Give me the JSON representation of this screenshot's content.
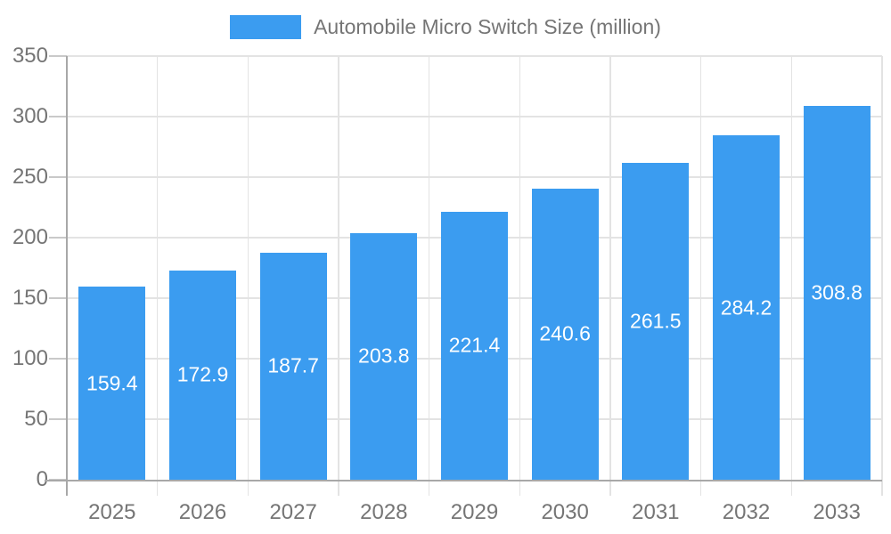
{
  "legend": {
    "series_label": "Automobile Micro Switch Size (million)"
  },
  "chart_data": {
    "type": "bar",
    "title": "",
    "xlabel": "",
    "ylabel": "",
    "categories": [
      "2025",
      "2026",
      "2027",
      "2028",
      "2029",
      "2030",
      "2031",
      "2032",
      "2033"
    ],
    "series": [
      {
        "name": "Automobile Micro Switch Size (million)",
        "values": [
          159.4,
          172.9,
          187.7,
          203.8,
          221.4,
          240.6,
          261.5,
          284.2,
          308.8
        ]
      }
    ],
    "ylim": [
      0,
      350
    ],
    "yticks": [
      0,
      50,
      100,
      150,
      200,
      250,
      300,
      350
    ],
    "grid": "horizontal gridlines at y ticks and vertical gridlines at category boundaries",
    "legend_position": "top-center",
    "value_labels": "white, centered inside each bar"
  },
  "colors": {
    "bar": "#3B9CF0",
    "axis_line": "#a8a8a8",
    "gridline": "#e3e3e3",
    "tick": "#c9c9c9",
    "axis_text": "#757575",
    "bar_label_text": "#ffffff",
    "background": "#ffffff"
  }
}
